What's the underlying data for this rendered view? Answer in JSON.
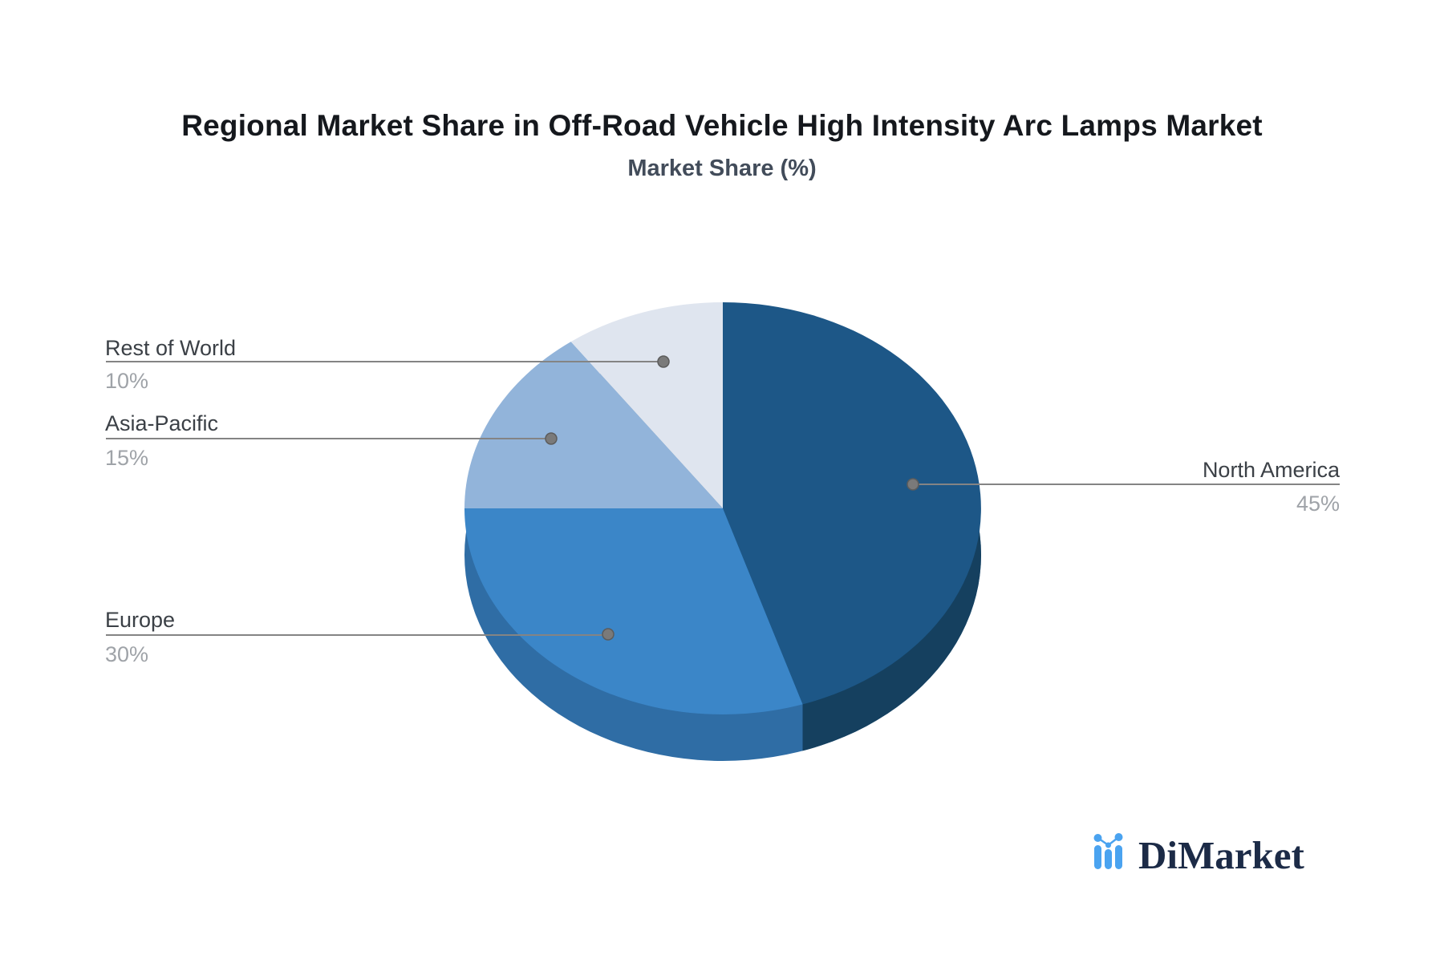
{
  "title": "Regional Market Share in Off-Road Vehicle High Intensity Arc Lamps Market",
  "subtitle": "Market Share (%)",
  "chart_data": {
    "type": "pie",
    "title": "Regional Market Share in Off-Road Vehicle High Intensity Arc Lamps Market",
    "subtitle": "Market Share (%)",
    "unit": "%",
    "style": "3d-pie",
    "start_angle_deg": 0,
    "direction": "clockwise",
    "legend_position": "callout-labels",
    "categories": [
      "North America",
      "Europe",
      "Asia-Pacific",
      "Rest of World"
    ],
    "values": [
      45,
      30,
      15,
      10
    ],
    "slices": [
      {
        "label": "North America",
        "value": 45,
        "pct_label": "45%",
        "color": "#1d5787",
        "rim_color": "#15405f"
      },
      {
        "label": "Europe",
        "value": 30,
        "pct_label": "30%",
        "color": "#3b86c8",
        "rim_color": "#2f6da5"
      },
      {
        "label": "Asia-Pacific",
        "value": 15,
        "pct_label": "15%",
        "color": "#92b4da",
        "rim_color": "#92b4da"
      },
      {
        "label": "Rest of World",
        "value": 10,
        "pct_label": "10%",
        "color": "#dfe5ef",
        "rim_color": "#dfe5ef"
      }
    ]
  },
  "colors": {
    "title": "#15181d",
    "subtitle": "#424c5a",
    "label_text": "#3b4046",
    "pct_text": "#9fa3a8",
    "leader_line": "#848484",
    "logo_text": "#1c2b47",
    "logo_icon": "#4aa3f0"
  },
  "logo": {
    "text": "DiMarket",
    "icon": "bar-line-chart-icon"
  }
}
